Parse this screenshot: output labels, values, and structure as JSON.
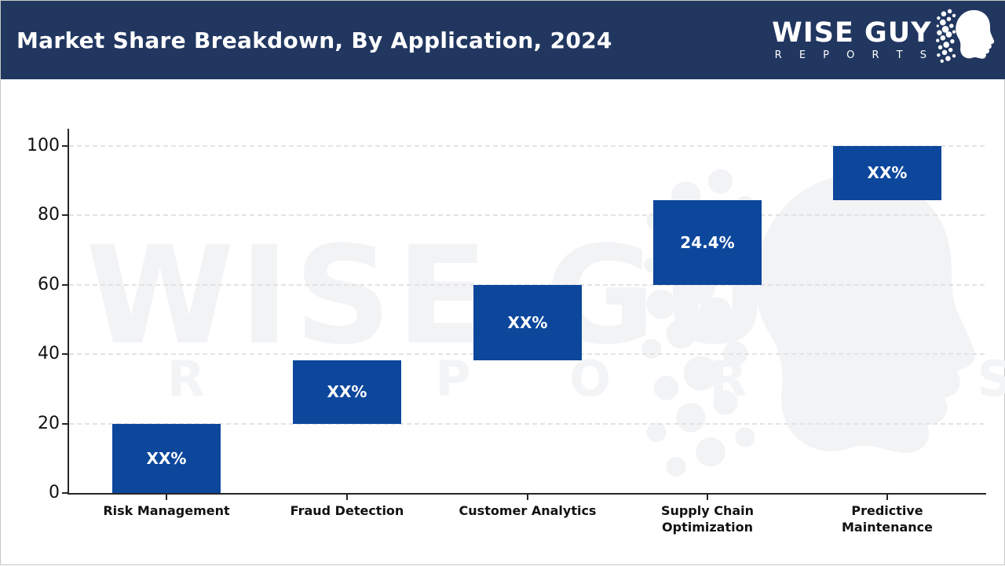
{
  "header": {
    "title": "Market Share Breakdown, By Application, 2024",
    "logo": {
      "line1": "WISE GUY",
      "line2": "R E P O R T S"
    }
  },
  "watermark": {
    "line1": "WISE GUY",
    "line2": "R E P O R T S"
  },
  "colors": {
    "header_bg": "#213760",
    "bar": "#0d479c",
    "grid": "#e3e3e3",
    "axis": "#262626",
    "bar_label_text": "#ffffff",
    "watermark_text": "#f2f3f5"
  },
  "chart_data": {
    "type": "bar",
    "subtype": "waterfall",
    "title": "Market Share Breakdown, By Application, 2024",
    "xlabel": "",
    "ylabel": "",
    "categories": [
      "Risk Management",
      "Fraud Detection",
      "Customer Analytics",
      "Supply Chain\nOptimization",
      "Predictive\nMaintenance"
    ],
    "segments": [
      {
        "category": "Risk Management",
        "start": 0,
        "end": 20,
        "label": "XX%"
      },
      {
        "category": "Fraud Detection",
        "start": 20,
        "end": 38.2,
        "label": "XX%"
      },
      {
        "category": "Customer Analytics",
        "start": 38.2,
        "end": 60,
        "label": "XX%"
      },
      {
        "category": "Supply Chain Optimization",
        "start": 60,
        "end": 84.4,
        "label": "24.4%"
      },
      {
        "category": "Predictive Maintenance",
        "start": 84.4,
        "end": 100,
        "label": "XX%"
      }
    ],
    "yticks": [
      0,
      20,
      40,
      60,
      80,
      100
    ],
    "ylim": [
      0,
      104.5
    ],
    "grid": "horizontal-dashed",
    "legend": "none"
  }
}
